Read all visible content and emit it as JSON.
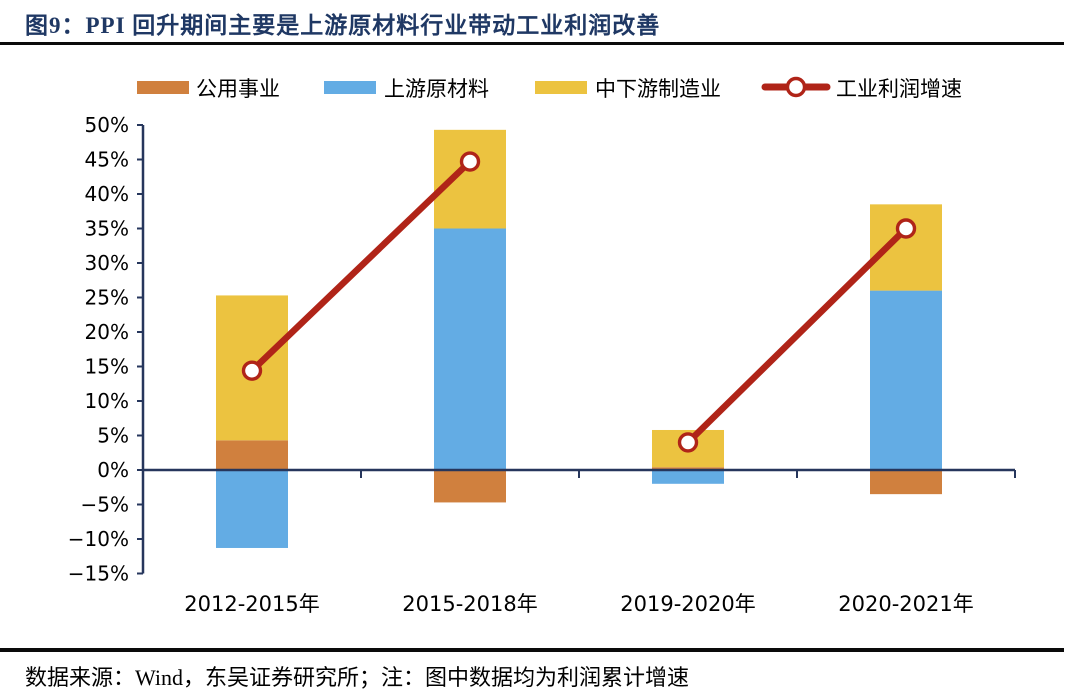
{
  "header": {
    "title": "图9：PPI 回升期间主要是上游原材料行业带动工业利润改善"
  },
  "footer": {
    "source_note": "数据来源：Wind，东吴证券研究所；注：图中数据均为利润累计增速"
  },
  "colors": {
    "title_navy": "#1F3864",
    "axis_navy": "#26365C",
    "divider_black": "#0a0a0a",
    "utilities_orange": "#D0803E",
    "upstream_blue": "#63ACE4",
    "downstream_yellow": "#ECC340",
    "profit_line_red": "#B02418",
    "marker_fill": "#FFFFFF"
  },
  "chart_data": {
    "type": "bar",
    "subtype": "stacked-bars-with-line-overlay",
    "title": "图9：PPI 回升期间主要是上游原材料行业带动工业利润改善",
    "categories": [
      "2012-2015年",
      "2015-2018年",
      "2019-2020年",
      "2020-2021年"
    ],
    "series": [
      {
        "key": "utilities",
        "name": "公用事业",
        "type": "bar",
        "color": "#D0803E",
        "values": [
          4.3,
          -4.7,
          0.4,
          -3.5
        ]
      },
      {
        "key": "upstream",
        "name": "上游原材料",
        "type": "bar",
        "color": "#63ACE4",
        "values": [
          -11.3,
          35.0,
          -2.0,
          26.0
        ]
      },
      {
        "key": "downstream",
        "name": "中下游制造业",
        "type": "bar",
        "color": "#ECC340",
        "values": [
          21.0,
          14.3,
          5.4,
          12.5
        ]
      },
      {
        "key": "profit-growth",
        "name": "工业利润增速",
        "type": "line",
        "color": "#B02418",
        "values": [
          14.4,
          44.7,
          4.0,
          35.0
        ],
        "segments": [
          [
            0,
            1
          ],
          [
            2,
            3
          ]
        ],
        "marker": "open-circle"
      }
    ],
    "xlabel": "",
    "ylabel": "",
    "ylim": [
      -15,
      50
    ],
    "ytick_step": 5,
    "ytick_labels": [
      "50%",
      "45%",
      "40%",
      "35%",
      "30%",
      "25%",
      "20%",
      "15%",
      "10%",
      "5%",
      "0%",
      "−5%",
      "−10%",
      "−15%"
    ],
    "grid": false,
    "legend_position": "top"
  }
}
